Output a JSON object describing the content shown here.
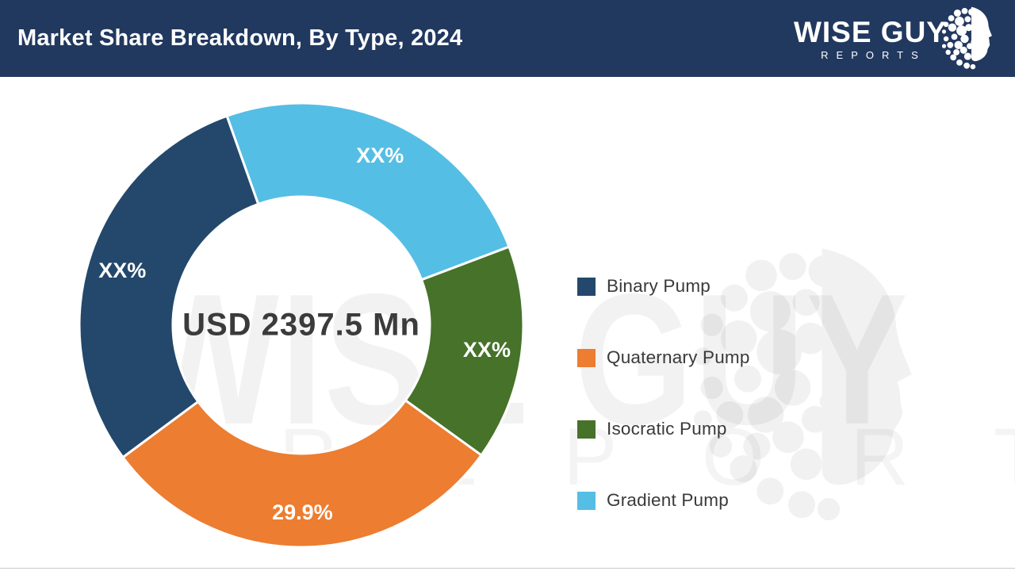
{
  "header": {
    "title": "Market Share Breakdown, By Type, 2024",
    "logo": {
      "line1": "WISE GUY",
      "line2": "REPORTS"
    }
  },
  "watermark": {
    "line1": "WISE GUY",
    "line2": "R E P O R T S"
  },
  "colors": {
    "header_bg": "#21385F",
    "center_text": "#3b3b3b",
    "legend_text": "#3a3a3a",
    "slice_gap": "#ffffff"
  },
  "chart_data": {
    "type": "donut",
    "title": "Market Share Breakdown, By Type, 2024",
    "center_label": "USD 2397.5 Mn",
    "start_angle_deg": -19.6,
    "direction": "clockwise",
    "slices": [
      {
        "name": "Gradient Pump",
        "value_pct": 24.7,
        "label": "XX%",
        "color": "#55BEE4"
      },
      {
        "name": "Isocratic Pump",
        "value_pct": 15.7,
        "label": "XX%",
        "color": "#46722A"
      },
      {
        "name": "Quaternary Pump",
        "value_pct": 29.9,
        "label": "29.9%",
        "color": "#EC7D31"
      },
      {
        "name": "Binary Pump",
        "value_pct": 29.7,
        "label": "XX%",
        "color": "#23486B"
      }
    ],
    "legend_order": [
      3,
      2,
      1,
      0
    ],
    "legend_position": "right"
  }
}
